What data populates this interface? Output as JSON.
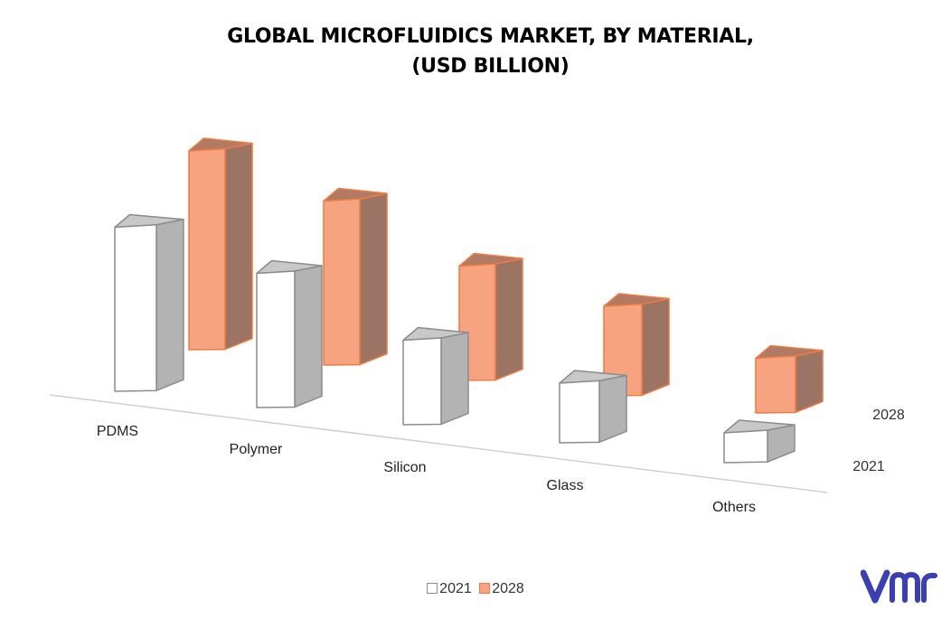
{
  "title_line1": "GLOBAL MICROFLUIDICS MARKET, BY MATERIAL,",
  "title_line2": "(USD BILLION)",
  "colors": {
    "s2021_front": "#ffffff",
    "s2021_side": "#b3b3b3",
    "s2021_top": "#c8c8c8",
    "s2021_stroke": "#8c8c8c",
    "s2028_front": "#f7a37f",
    "s2028_side": "#9b7464",
    "s2028_top": "#b07a63",
    "s2028_stroke": "#ee7b42",
    "logo": "#3a3fb5"
  },
  "logo_icon": "vmr-logo",
  "chart_data": {
    "type": "bar",
    "categories": [
      "PDMS",
      "Polymer",
      "Silicon",
      "Glass",
      "Others"
    ],
    "series": [
      {
        "name": "2021",
        "values": [
          3.3,
          2.7,
          1.7,
          1.2,
          0.6
        ]
      },
      {
        "name": "2028",
        "values": [
          4.0,
          3.3,
          2.3,
          1.8,
          1.1
        ]
      }
    ],
    "legend": "bottom",
    "grid": false,
    "depth_labels": [
      "2028",
      "2021"
    ]
  }
}
